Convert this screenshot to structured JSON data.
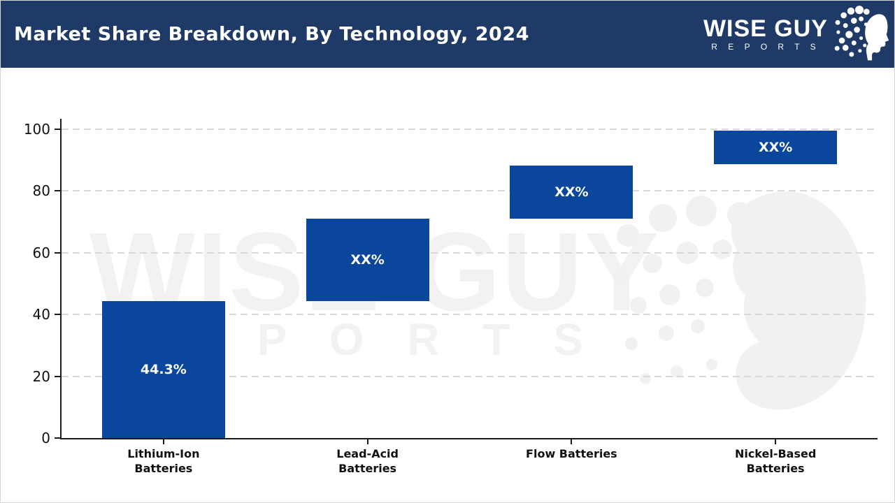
{
  "header": {
    "title": "Market Share Breakdown, By Technology, 2024",
    "logo": {
      "line1": "WISE GUY",
      "line2": "R E P O R T S"
    }
  },
  "watermark": {
    "line1": "WISE GUY",
    "line2": "R E P O R T S"
  },
  "colors": {
    "header_bg": "#1f3a67",
    "bar": "#0a469b",
    "gridline": "#d9d9d9",
    "axis": "#1a1a1a",
    "bar_label": "#ffffff",
    "watermark": "#f2f2f2"
  },
  "chart_data": {
    "type": "bar",
    "subtype": "waterfall",
    "title": "Market Share Breakdown, By Technology, 2024",
    "xlabel": "",
    "ylabel": "",
    "ylim": [
      0,
      100
    ],
    "yticks": [
      0,
      20,
      40,
      60,
      80,
      100
    ],
    "grid": "horizontal dashed",
    "legend": false,
    "categories": [
      "Lithium-Ion Batteries",
      "Lead-Acid Batteries",
      "Flow Batteries",
      "Nickel-Based Batteries"
    ],
    "category_lines": [
      [
        "Lithium-Ion",
        "Batteries"
      ],
      [
        "Lead-Acid",
        "Batteries"
      ],
      [
        "Flow Batteries"
      ],
      [
        "Nickel-Based",
        "Batteries"
      ]
    ],
    "segments": [
      {
        "category": "Lithium-Ion Batteries",
        "start": 0,
        "end": 44.3,
        "value_label": "44.3%"
      },
      {
        "category": "Lead-Acid Batteries",
        "start": 44.3,
        "end": 71.0,
        "value_label": "XX%"
      },
      {
        "category": "Flow Batteries",
        "start": 71.0,
        "end": 88.3,
        "value_label": "XX%"
      },
      {
        "category": "Nickel-Based Batteries",
        "start": 88.7,
        "end": 99.5,
        "value_label": "XX%"
      }
    ]
  }
}
